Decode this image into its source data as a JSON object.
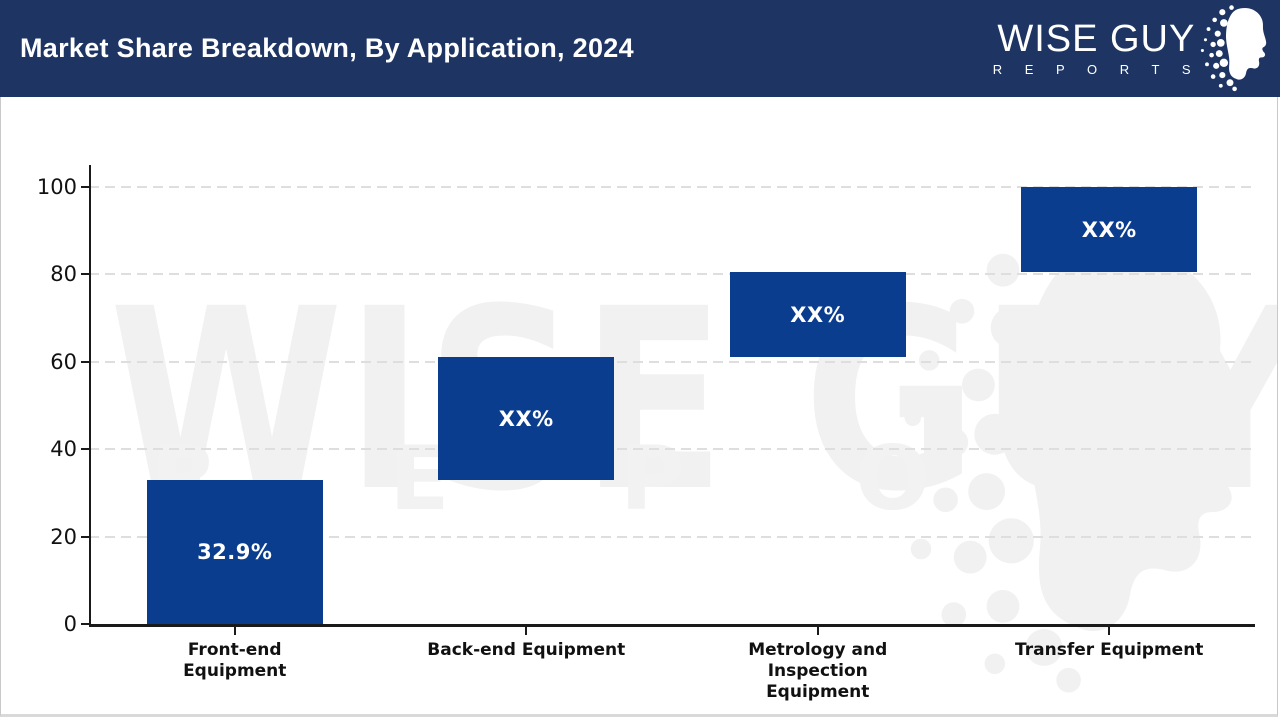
{
  "header": {
    "title": "Market Share Breakdown, By Application, 2024",
    "bg_color": "#1e3563",
    "logo": {
      "line1": "WISE GUY",
      "line2": "R E P O R T S"
    }
  },
  "watermark": {
    "line1": "WISE GUY",
    "line2": "R E P O R T S"
  },
  "chart_data": {
    "type": "bar",
    "subtype": "waterfall",
    "title": "Market Share Breakdown, By Application, 2024",
    "xlabel": "",
    "ylabel": "",
    "ylim": [
      0,
      105
    ],
    "yticks": [
      0,
      20,
      40,
      60,
      80,
      100
    ],
    "grid": "horizontal-dashed",
    "legend": "none",
    "bar_color": "#0b3d8e",
    "label_color": "#ffffff",
    "categories": [
      "Front-end Equipment",
      "Back-end Equipment",
      "Metrology and Inspection Equipment",
      "Transfer Equipment"
    ],
    "bars": [
      {
        "category_lines": [
          "Front-end",
          "Equipment"
        ],
        "start": 0,
        "end": 32.9,
        "label": "32.9%"
      },
      {
        "category_lines": [
          "Back-end Equipment"
        ],
        "start": 32.9,
        "end": 61.0,
        "label": "XX%"
      },
      {
        "category_lines": [
          "Metrology and",
          "Inspection",
          "Equipment"
        ],
        "start": 61.0,
        "end": 80.5,
        "label": "XX%"
      },
      {
        "category_lines": [
          "Transfer Equipment"
        ],
        "start": 80.5,
        "end": 100.0,
        "label": "XX%"
      }
    ]
  }
}
